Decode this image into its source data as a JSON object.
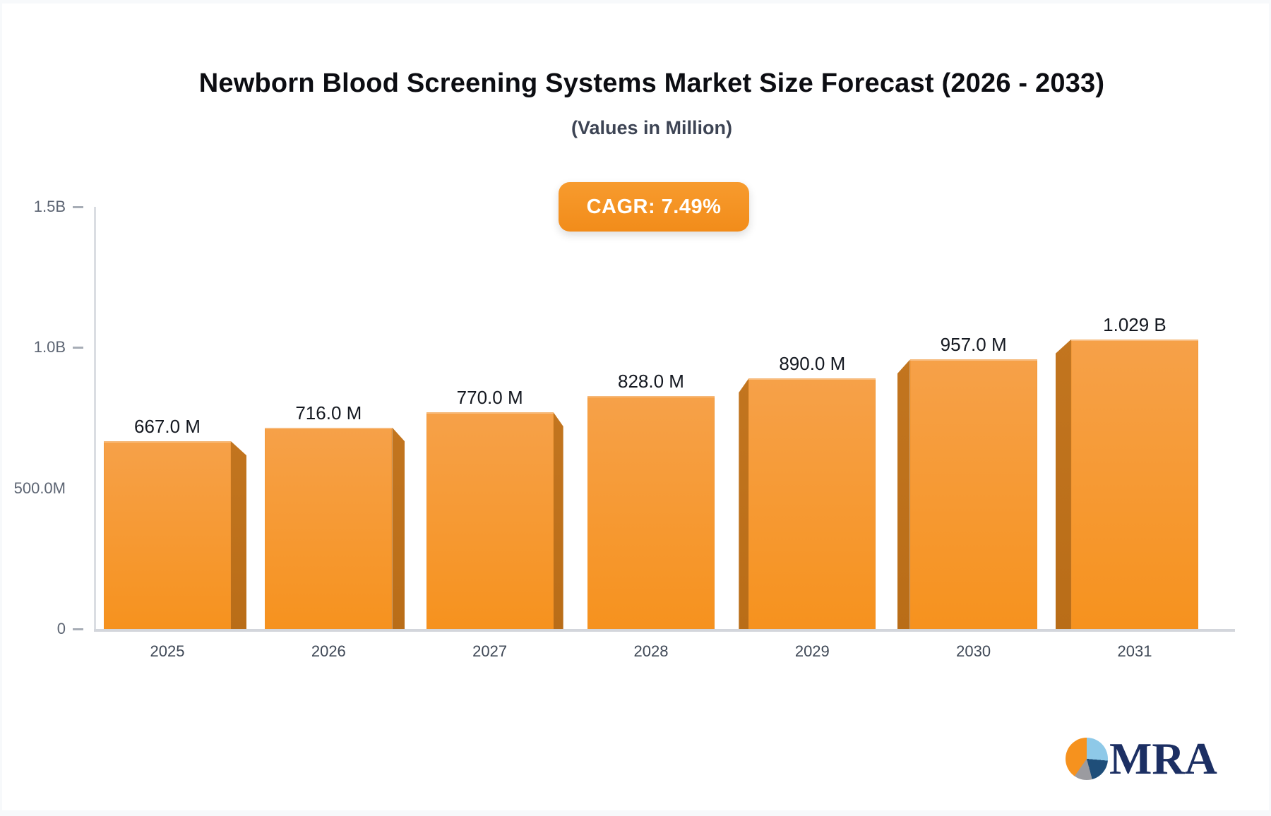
{
  "page": {
    "title": "Newborn Blood Screening Systems Market Size Forecast (2026 - 2033)",
    "subtitle": "(Values in Million)",
    "cagr_badge": "CAGR: 7.49%"
  },
  "chart_data": {
    "type": "bar",
    "title": "Newborn Blood Screening Systems Market Size Forecast (2026 - 2033)",
    "subtitle": "(Values in Million)",
    "cagr_percent": 7.49,
    "categories": [
      "2025",
      "2026",
      "2027",
      "2028",
      "2029",
      "2030",
      "2031"
    ],
    "values_millions": [
      667,
      716,
      770,
      828,
      890,
      957,
      1029
    ],
    "value_labels": [
      "667.0 M",
      "716.0 M",
      "770.0 M",
      "828.0 M",
      "890.0 M",
      "957.0 M",
      "1.029 B"
    ],
    "y_ticks": [
      {
        "label": "1.5B",
        "millions": 1500,
        "dash": true
      },
      {
        "label": "1.0B",
        "millions": 1000,
        "dash": true
      },
      {
        "label": "500.0M",
        "millions": 500,
        "dash": false
      },
      {
        "label": "0",
        "millions": 0,
        "dash": true
      }
    ],
    "ylim_millions": [
      0,
      1500
    ],
    "grid": false,
    "legend": "none",
    "bar_style": "3d-extruded, perspective from center"
  },
  "colors": {
    "bar_face": "#f6921e",
    "bar_face_top": "#f6a149",
    "bar_side_3d": "#bd701d",
    "badge_bg": "#f6921e",
    "badge_text": "#ffffff",
    "axis_line": "#d3d6dc",
    "y_tick_label": "#5d6573",
    "x_tick_label": "#3f4856",
    "value_label": "#141820",
    "title_text": "#0c0d12",
    "subtitle_text": "#3d4454",
    "logo_navy": "#1c2f63",
    "logo_orange": "#f6921e",
    "logo_lightblue": "#8ec9e8",
    "logo_gray": "#9b9ba0"
  },
  "logo": {
    "text": "MRA"
  }
}
